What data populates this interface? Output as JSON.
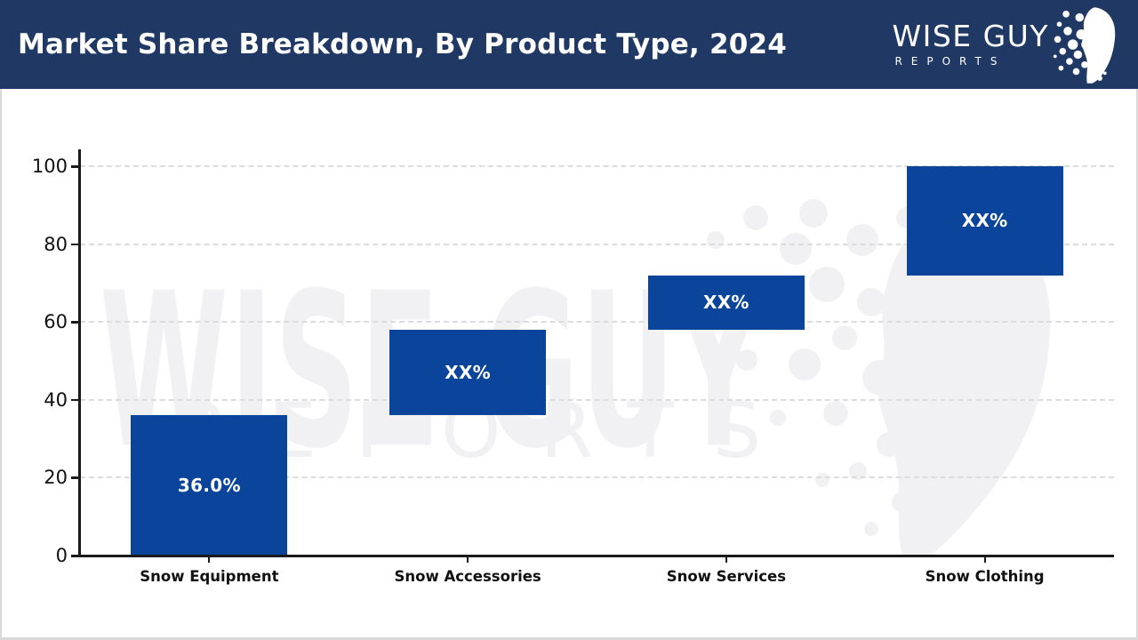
{
  "header": {
    "title": "Market Share Breakdown, By Product Type, 2024",
    "background_color": "#1f3864",
    "brand": {
      "line1": "WISE GUY",
      "line2": "REPORTS"
    }
  },
  "watermark": {
    "line1": "WISE GUY",
    "line2": "REPORTS",
    "color": "#f1f1f4"
  },
  "chart_data": {
    "type": "bar",
    "subtype": "waterfall-floating-bars",
    "title": "Market Share Breakdown, By Product Type, 2024",
    "categories": [
      "Snow Equipment",
      "Snow Accessories",
      "Snow Services",
      "Snow Clothing"
    ],
    "bar_ranges": [
      [
        0,
        36
      ],
      [
        36,
        58
      ],
      [
        58,
        72
      ],
      [
        72,
        100
      ]
    ],
    "segment_values": [
      36,
      22,
      14,
      28
    ],
    "bar_labels": [
      "36.0%",
      "XX%",
      "XX%",
      "XX%"
    ],
    "yticks": [
      0,
      20,
      40,
      60,
      80,
      100
    ],
    "ylim": [
      0,
      105
    ],
    "xlabel": "",
    "ylabel": "",
    "grid": "horizontal-dashed",
    "legend": "none",
    "bar_color": "#0a449b",
    "bar_label_color": "#ffffff",
    "axis_color": "#1a1a1a",
    "gridline_color": "#dcdcdc",
    "tick_label_color": "#111111"
  }
}
